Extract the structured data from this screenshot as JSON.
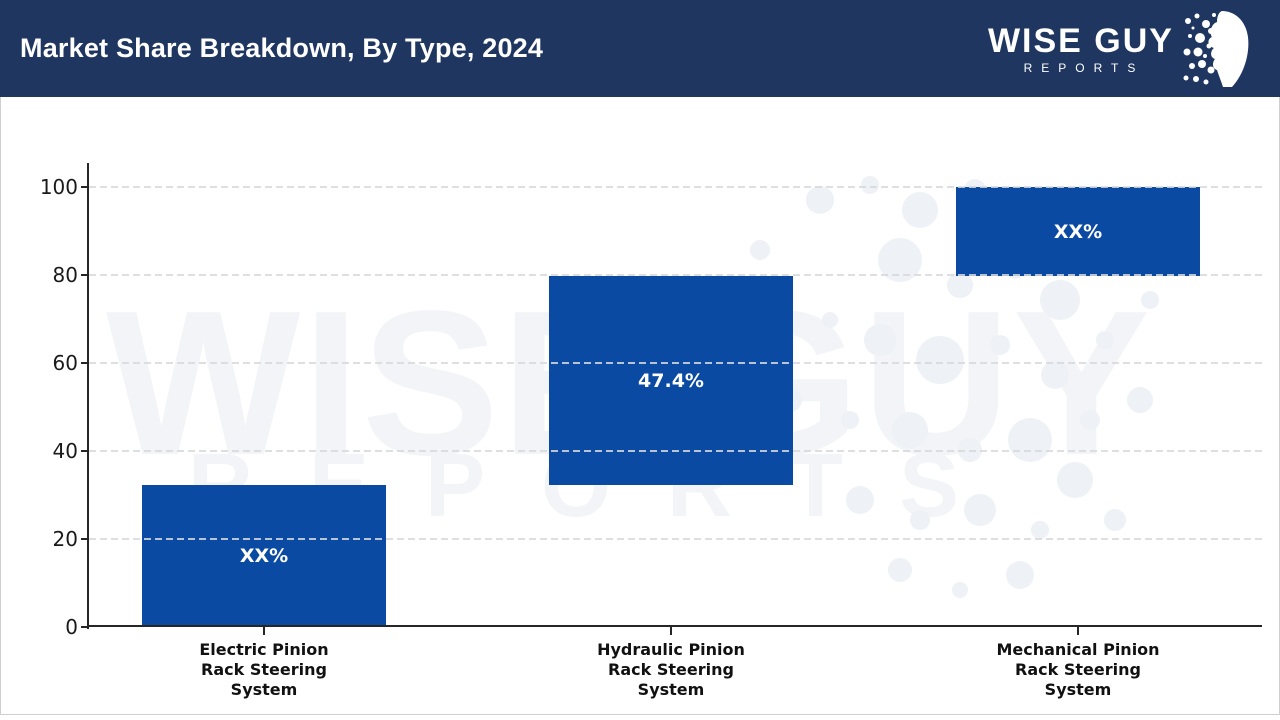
{
  "header": {
    "title": "Market Share Breakdown, By Type, 2024",
    "logo": {
      "wordmark": "WISE GUY",
      "subtext": "REPORTS"
    }
  },
  "watermark": {
    "wordmark": "WISE GUY",
    "subtext": "REPORTS"
  },
  "chart_data": {
    "type": "bar",
    "subtype": "waterfall",
    "title": "Market Share Breakdown, By Type, 2024",
    "categories": [
      [
        "Electric Pinion",
        "Rack Steering",
        "System"
      ],
      [
        "Hydraulic Pinion",
        "Rack Steering",
        "System"
      ],
      [
        "Mechanical Pinion",
        "Rack Steering",
        "System"
      ]
    ],
    "bars": [
      {
        "label": "XX%",
        "start": 0,
        "end": 32.3
      },
      {
        "label": "47.4%",
        "start": 32.3,
        "end": 79.7
      },
      {
        "label": "XX%",
        "start": 79.7,
        "end": 100
      }
    ],
    "bar_color": "#0b4aa2",
    "value_label_color": "#ffffff",
    "yticks": [
      0,
      20,
      40,
      60,
      80,
      100
    ],
    "ylim": [
      0,
      105.5
    ],
    "grid": "horizontal-dashed",
    "legend_position": "none"
  }
}
